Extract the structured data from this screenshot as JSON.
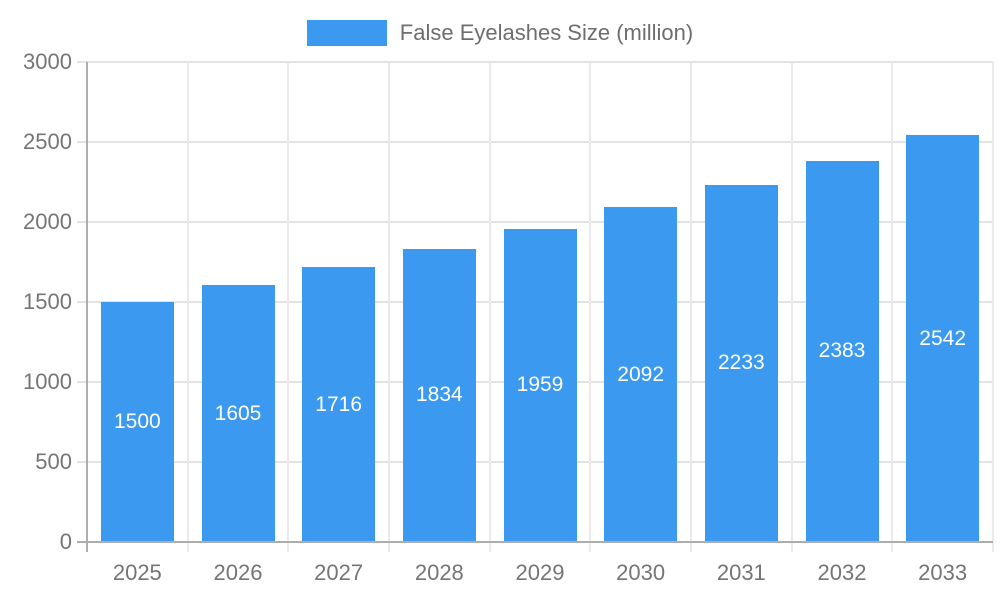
{
  "legend": {
    "label": "False Eyelashes Size (million)"
  },
  "chart_data": {
    "type": "bar",
    "title": "",
    "categories": [
      "2025",
      "2026",
      "2027",
      "2028",
      "2029",
      "2030",
      "2031",
      "2032",
      "2033"
    ],
    "series": [
      {
        "name": "False Eyelashes Size (million)",
        "values": [
          1500,
          1605,
          1716,
          1834,
          1959,
          2092,
          2233,
          2383,
          2542
        ]
      }
    ],
    "xlabel": "",
    "ylabel": "",
    "ylim": [
      0,
      3000
    ],
    "yticks": [
      0,
      500,
      1000,
      1500,
      2000,
      2500,
      3000
    ],
    "grid": true,
    "legend_position": "top-center",
    "value_label_position": "inside-center"
  },
  "colors": {
    "bar": "#3B99F0",
    "axis_line": "#ADADAD",
    "h_grid": "#E3E3E3",
    "v_grid": "#EAEAEA",
    "tick_text": "#757575",
    "legend_text": "#6E6E6E",
    "value_label": "#FFFFFF",
    "background": "#FFFFFF"
  }
}
